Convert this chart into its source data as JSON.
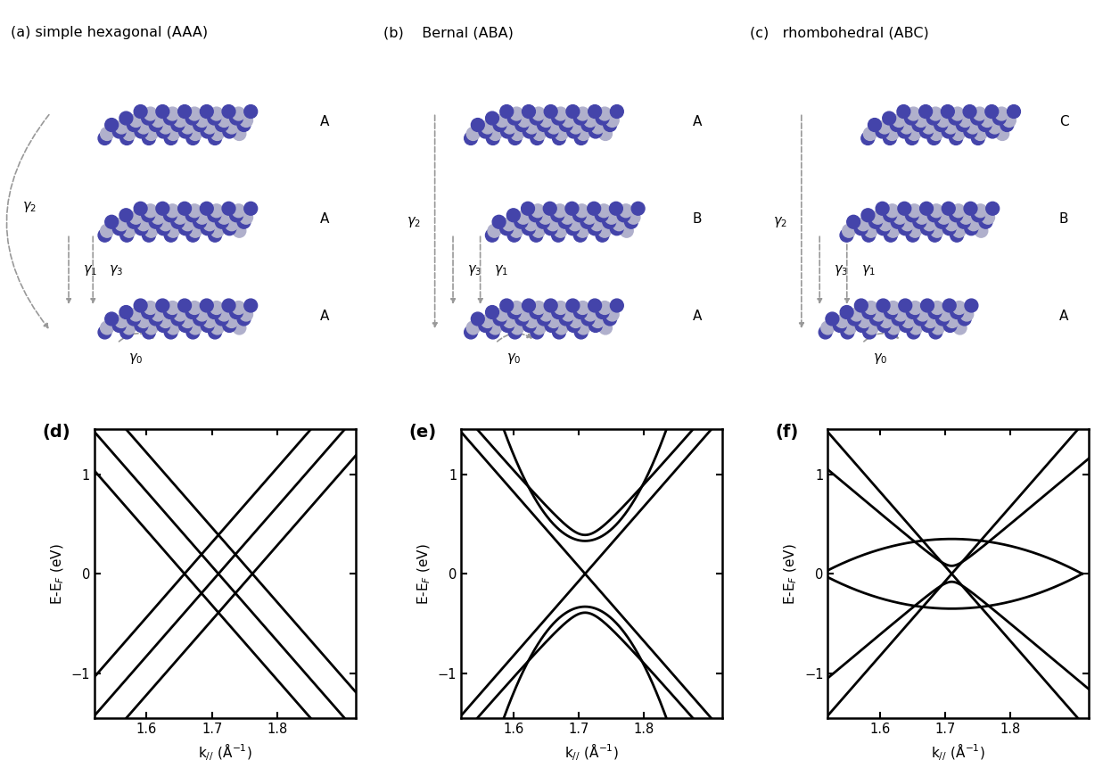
{
  "title_a": "(a) simple hexagonal (AAA)",
  "title_b": "(b)    Bernal (ABA)",
  "title_c": "(c)   rhombohedral (ABC)",
  "panel_d": "(d)",
  "panel_e": "(e)",
  "panel_f": "(f)",
  "xlim": [
    1.52,
    1.92
  ],
  "ylim": [
    -1.45,
    1.45
  ],
  "xticks": [
    1.6,
    1.7,
    1.8
  ],
  "yticks": [
    -1,
    0,
    1
  ],
  "k0": 1.71,
  "vF": 7.5,
  "t1": 0.39,
  "linewidth": 2.0,
  "linecolor": "#000000",
  "bg": "#ffffff",
  "dark_atom": "#4444aa",
  "light_atom": "#b0b0cc",
  "bond_color": "#cc3300",
  "arrow_color": "#999999"
}
